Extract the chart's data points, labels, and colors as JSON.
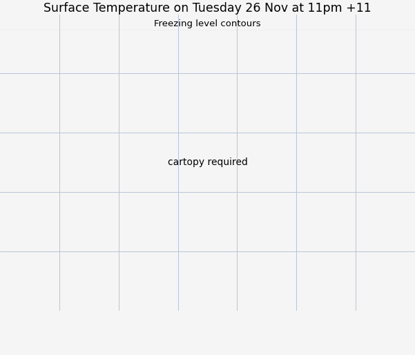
{
  "title": "Surface Temperature on Tuesday 26 Nov at 11pm +11",
  "subtitle": "Freezing level contours",
  "title_fontsize": 12.5,
  "subtitle_fontsize": 9.5,
  "ocean_color": "#ccd5e8",
  "title_bg": "#f5f5f5",
  "contour_color": "#dd0000",
  "grid_color": "#b8c4d8",
  "fig_width": 6.01,
  "fig_height": 5.14,
  "dpi": 100,
  "lon_min": 140.0,
  "lon_max": 175.0,
  "lat_min": -20.0,
  "lat_max": 5.0
}
